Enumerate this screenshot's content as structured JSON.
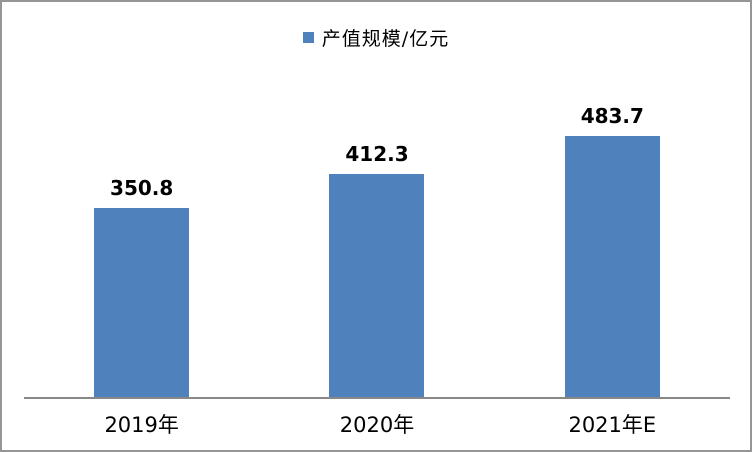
{
  "chart_data": {
    "type": "bar",
    "title": "",
    "series_name": "产值规模/亿元",
    "categories": [
      "2019年",
      "2020年",
      "2021年E"
    ],
    "values": [
      350.8,
      412.3,
      483.7
    ],
    "value_labels": [
      "350.8",
      "412.3",
      "483.7"
    ],
    "xlabel": "",
    "ylabel": "",
    "ylim": [
      0,
      600
    ],
    "grid": false,
    "legend_position": "top",
    "bar_color": "#4F81BD"
  },
  "colors": {
    "bar": "#4F81BD",
    "frame_border": "#959595",
    "axis_line": "#888888",
    "text": "#000000",
    "background": "#ffffff"
  }
}
